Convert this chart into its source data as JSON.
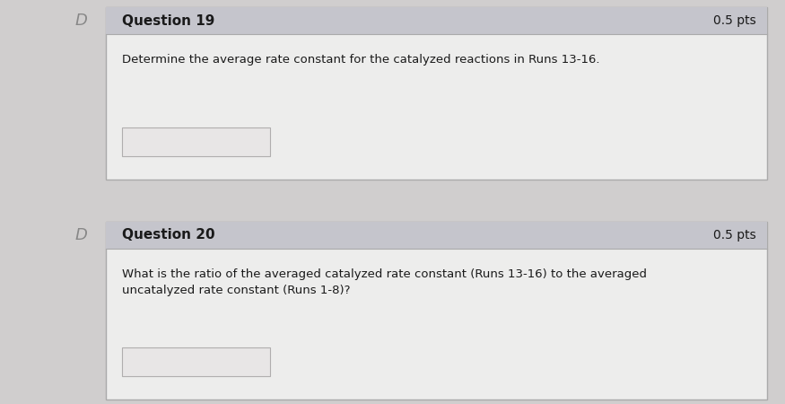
{
  "bg_color": "#d0cece",
  "card_bg": "#ededec",
  "card_border": "#aaaaaa",
  "header_bg": "#c5c5cc",
  "header_text_color": "#1a1a1a",
  "body_text_color": "#1a1a1a",
  "input_bg": "#e8e6e6",
  "input_border": "#b0aeae",
  "q19_title": "Question 19",
  "q19_pts": "0.5 pts",
  "q19_body": "Determine the average rate constant for the catalyzed reactions in Runs 13-16.",
  "q20_title": "Question 20",
  "q20_pts": "0.5 pts",
  "q20_body_line1": "What is the ratio of the averaged catalyzed rate constant (Runs 13-16) to the averaged",
  "q20_body_line2": "uncatalyzed rate constant (Runs 1-8)?",
  "checkbox_color": "#888888",
  "fig_w": 8.75,
  "fig_h": 4.5,
  "dpi": 100
}
